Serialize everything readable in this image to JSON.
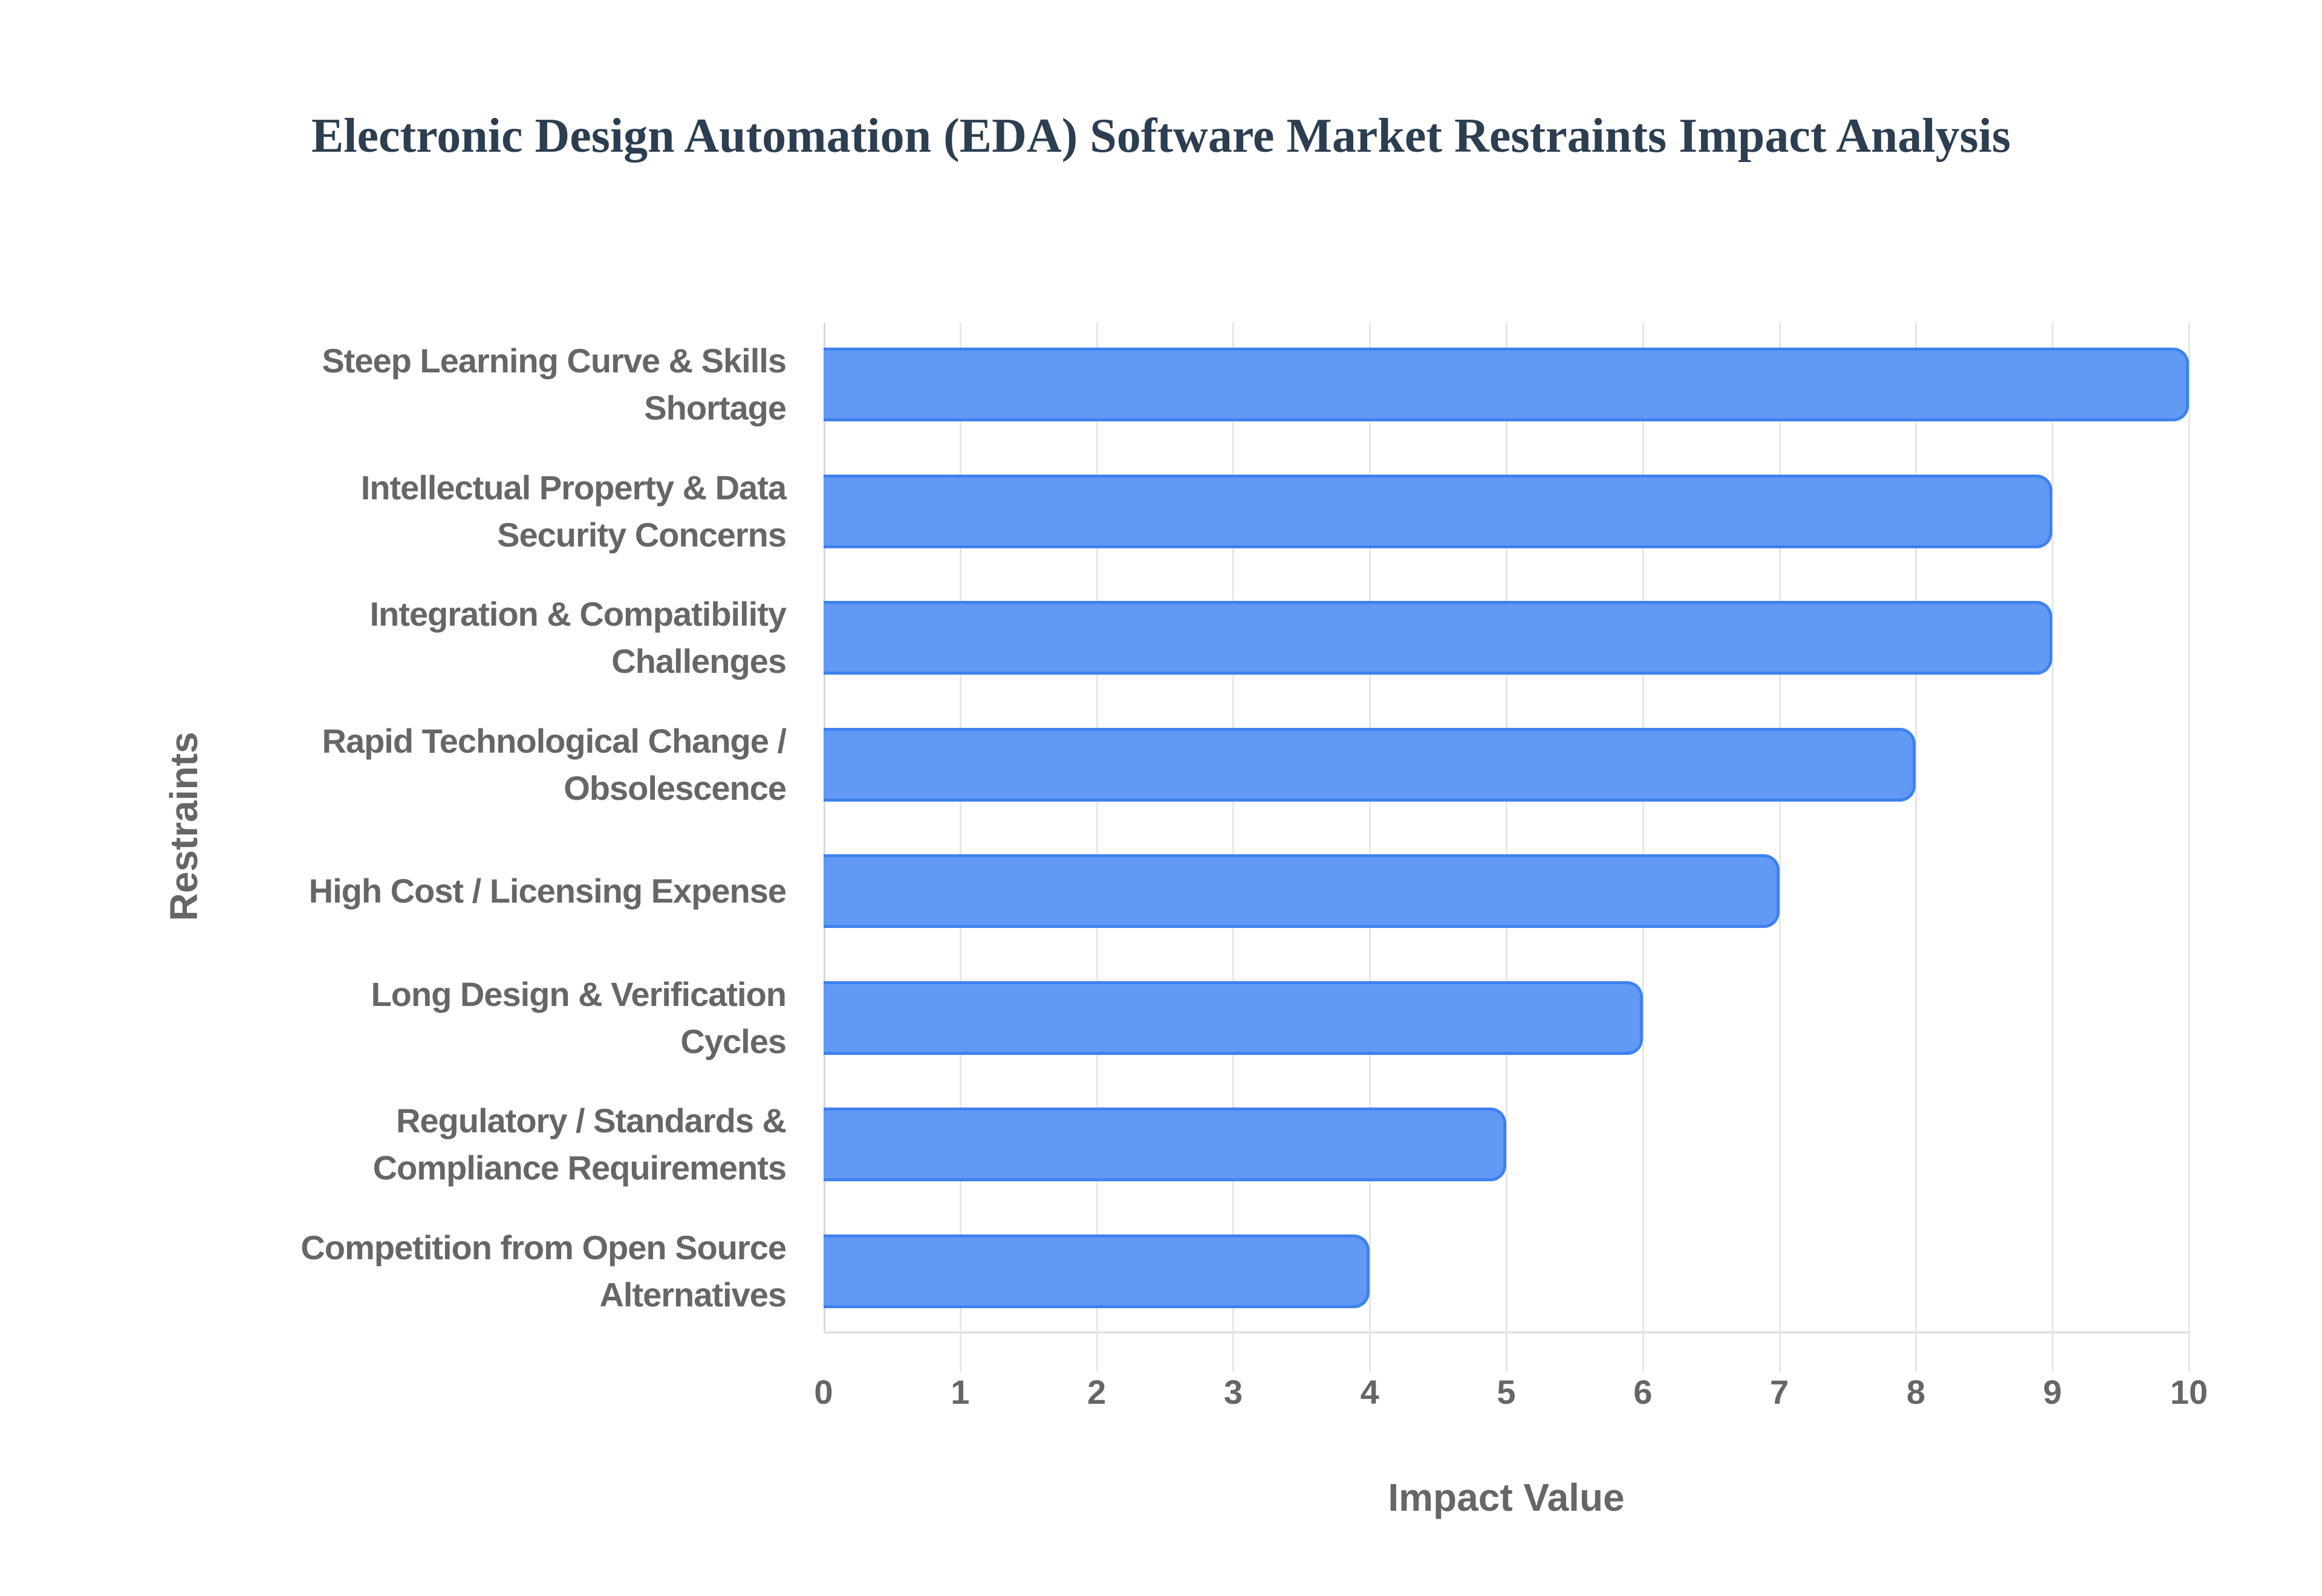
{
  "chart_data": {
    "type": "bar",
    "orientation": "horizontal",
    "title": "Electronic Design Automation (EDA) Software Market Restraints Impact Analysis",
    "xlabel": "Impact Value",
    "ylabel": "Restraints",
    "xlim": [
      0,
      10
    ],
    "x_ticks": [
      "0",
      "1",
      "2",
      "3",
      "4",
      "5",
      "6",
      "7",
      "8",
      "9",
      "10"
    ],
    "grid": true,
    "legend": null,
    "categories": [
      "Steep Learning Curve & Skills Shortage",
      "Intellectual Property & Data Security Concerns",
      "Integration & Compatibility Challenges",
      "Rapid Technological Change / Obsolescence",
      "High Cost / Licensing Expense",
      "Long Design & Verification Cycles",
      "Regulatory / Standards & Compliance Requirements",
      "Competition from Open Source Alternatives"
    ],
    "values": [
      10,
      9,
      9,
      8,
      7,
      6,
      5,
      4
    ],
    "bar_color": "#6199f5",
    "bar_border_color": "#3f82ee"
  },
  "labels": [
    {
      "line1": "Steep Learning Curve & Skills",
      "line2": "Shortage"
    },
    {
      "line1": "Intellectual Property & Data",
      "line2": "Security Concerns"
    },
    {
      "line1": "Integration & Compatibility",
      "line2": "Challenges"
    },
    {
      "line1": "Rapid Technological Change /",
      "line2": "Obsolescence"
    },
    {
      "line1": "High Cost / Licensing Expense",
      "line2": ""
    },
    {
      "line1": "Long Design & Verification",
      "line2": "Cycles"
    },
    {
      "line1": "Regulatory / Standards &",
      "line2": "Compliance Requirements"
    },
    {
      "line1": "Competition from Open Source",
      "line2": "Alternatives"
    }
  ]
}
